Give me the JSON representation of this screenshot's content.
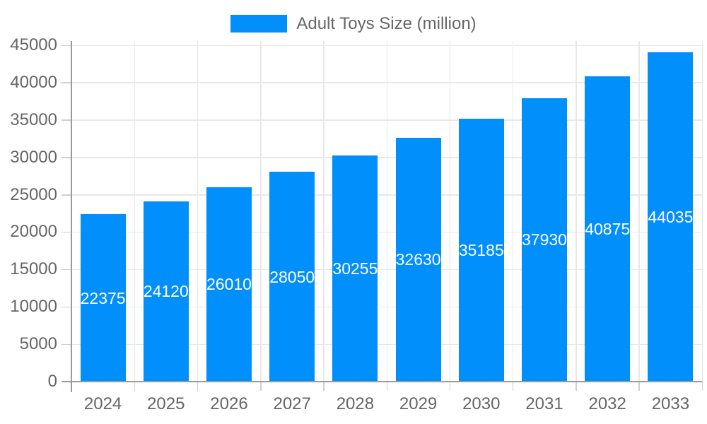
{
  "chart_data": {
    "type": "bar",
    "title": "",
    "categories": [
      "2024",
      "2025",
      "2026",
      "2027",
      "2028",
      "2029",
      "2030",
      "2031",
      "2032",
      "2033"
    ],
    "series": [
      {
        "name": "Adult Toys Size (million)",
        "values": [
          22375,
          24120,
          26010,
          28050,
          30255,
          32630,
          35185,
          37930,
          40875,
          44035
        ]
      }
    ],
    "value_labels": [
      "22375",
      "24120",
      "26010",
      "28050",
      "30255",
      "32630",
      "35185",
      "37930",
      "40875",
      "44035"
    ],
    "xlabel": "",
    "ylabel": "",
    "ylim": [
      0,
      45000
    ],
    "ytick_step": 5000,
    "y_tick_labels": [
      "0",
      "5000",
      "10000",
      "15000",
      "20000",
      "25000",
      "30000",
      "35000",
      "40000",
      "45000"
    ],
    "grid": true,
    "legend_position": "top",
    "colors": {
      "bar": "#008FFB",
      "value_label": "#FFFFFF",
      "axis_text": "#666666",
      "gridline": "#E8E8E8",
      "tick": "#D0D0D0",
      "axis_line": "#9A9A9A"
    }
  }
}
